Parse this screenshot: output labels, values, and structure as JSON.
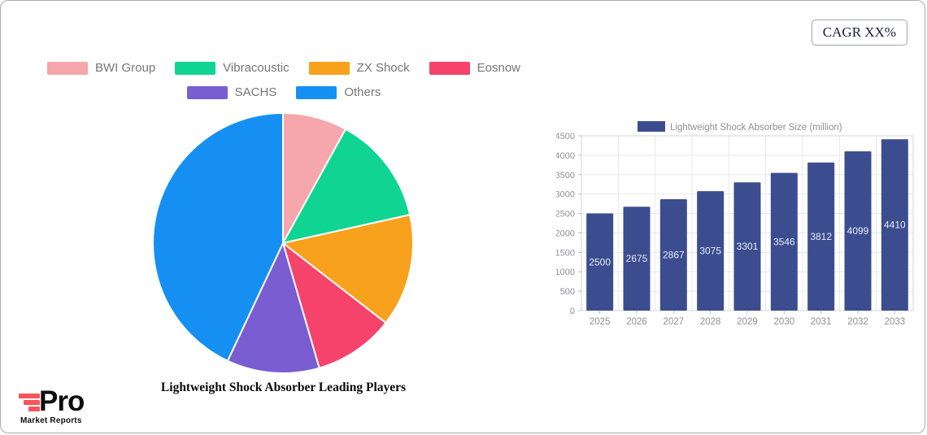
{
  "page": {
    "cagr_label": "CAGR XX%"
  },
  "logo": {
    "name": "Pro",
    "subtitle": "Market Reports",
    "accent_color": "#F4555C"
  },
  "chart_data": [
    {
      "type": "pie",
      "title": "Lightweight Shock Absorber Leading Players",
      "legend_position": "top",
      "legend_rows": [
        [
          0,
          1,
          2,
          3
        ],
        [
          4,
          5
        ]
      ],
      "start_angle_deg": 0,
      "direction": "clockwise",
      "units": "percent (estimated from slice angles)",
      "slices": [
        {
          "label": "BWI Group",
          "value": 8,
          "color": "#F5A7AC"
        },
        {
          "label": "Vibracoustic",
          "value": 13.5,
          "color": "#10D592"
        },
        {
          "label": "ZX Shock",
          "value": 14,
          "color": "#F8A11D"
        },
        {
          "label": "Eosnow",
          "value": 10,
          "color": "#F5436B"
        },
        {
          "label": "SACHS",
          "value": 11.5,
          "color": "#7A5DD1"
        },
        {
          "label": "Others",
          "value": 43,
          "color": "#1590F2"
        }
      ]
    },
    {
      "type": "bar",
      "legend": "Lightweight Shock Absorber Size (million)",
      "categories": [
        "2025",
        "2026",
        "2027",
        "2028",
        "2029",
        "2030",
        "2031",
        "2032",
        "2033"
      ],
      "values": [
        2500,
        2675,
        2867,
        3075,
        3301,
        3546,
        3812,
        4099,
        4410
      ],
      "ylim": [
        0,
        4500
      ],
      "ytick_step": 500,
      "bar_color": "#3C4D8F",
      "value_label_color": "#E9EBF5",
      "axis_text_color": "#8F8F94",
      "grid_color": "#E8E8EE",
      "frame_color": "#D4D4DA",
      "grid": true,
      "value_labels": "inside_center",
      "legend_position": "top"
    }
  ]
}
